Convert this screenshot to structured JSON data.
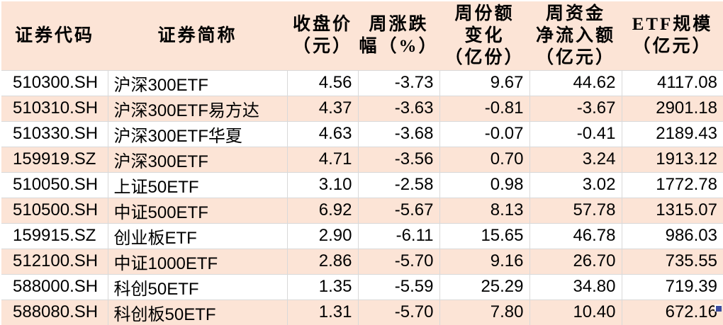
{
  "chart_data": {
    "type": "table",
    "columns": [
      {
        "label": "证券代码",
        "align": "left"
      },
      {
        "label": "证券简称",
        "align": "left"
      },
      {
        "label": "收盘价\n（元）",
        "align": "right"
      },
      {
        "label": "周涨跌\n幅（%）",
        "align": "right"
      },
      {
        "label": "周份额\n变化\n（亿份）",
        "align": "right"
      },
      {
        "label": "周资金\n净流入额\n（亿元）",
        "align": "right"
      },
      {
        "label": "ETF规模\n（亿元）",
        "align": "right"
      }
    ],
    "rows": [
      [
        "510300.SH",
        "沪深300ETF",
        "4.56",
        "-3.73",
        "9.67",
        "44.62",
        "4117.08"
      ],
      [
        "510310.SH",
        "沪深300ETF易方达",
        "4.37",
        "-3.63",
        "-0.81",
        "-3.67",
        "2901.18"
      ],
      [
        "510330.SH",
        "沪深300ETF华夏",
        "4.63",
        "-3.68",
        "-0.07",
        "-0.41",
        "2189.43"
      ],
      [
        "159919.SZ",
        "沪深300ETF",
        "4.71",
        "-3.56",
        "0.70",
        "3.24",
        "1913.12"
      ],
      [
        "510050.SH",
        "上证50ETF",
        "3.10",
        "-2.58",
        "0.98",
        "3.02",
        "1772.78"
      ],
      [
        "510500.SH",
        "中证500ETF",
        "6.92",
        "-5.67",
        "8.13",
        "57.78",
        "1315.07"
      ],
      [
        "159915.SZ",
        "创业板ETF",
        "2.90",
        "-6.11",
        "15.65",
        "46.78",
        "986.03"
      ],
      [
        "512100.SH",
        "中证1000ETF",
        "2.86",
        "-5.70",
        "9.16",
        "26.70",
        "735.55"
      ],
      [
        "588000.SH",
        "科创50ETF",
        "1.35",
        "-5.59",
        "25.29",
        "34.80",
        "719.39"
      ],
      [
        "588080.SH",
        "科创板50ETF",
        "1.31",
        "-5.70",
        "7.80",
        "10.40",
        "672.16"
      ]
    ]
  },
  "colors": {
    "header_bg": "#fce4d6",
    "row_even_bg": "#fce4d6",
    "row_odd_bg": "#ffffff",
    "grid_line": "#d9d9d9",
    "text": "#000000",
    "fill_handle": "#3b4ba0"
  },
  "icons": {
    "fill_handle": "excel-fill-handle"
  }
}
